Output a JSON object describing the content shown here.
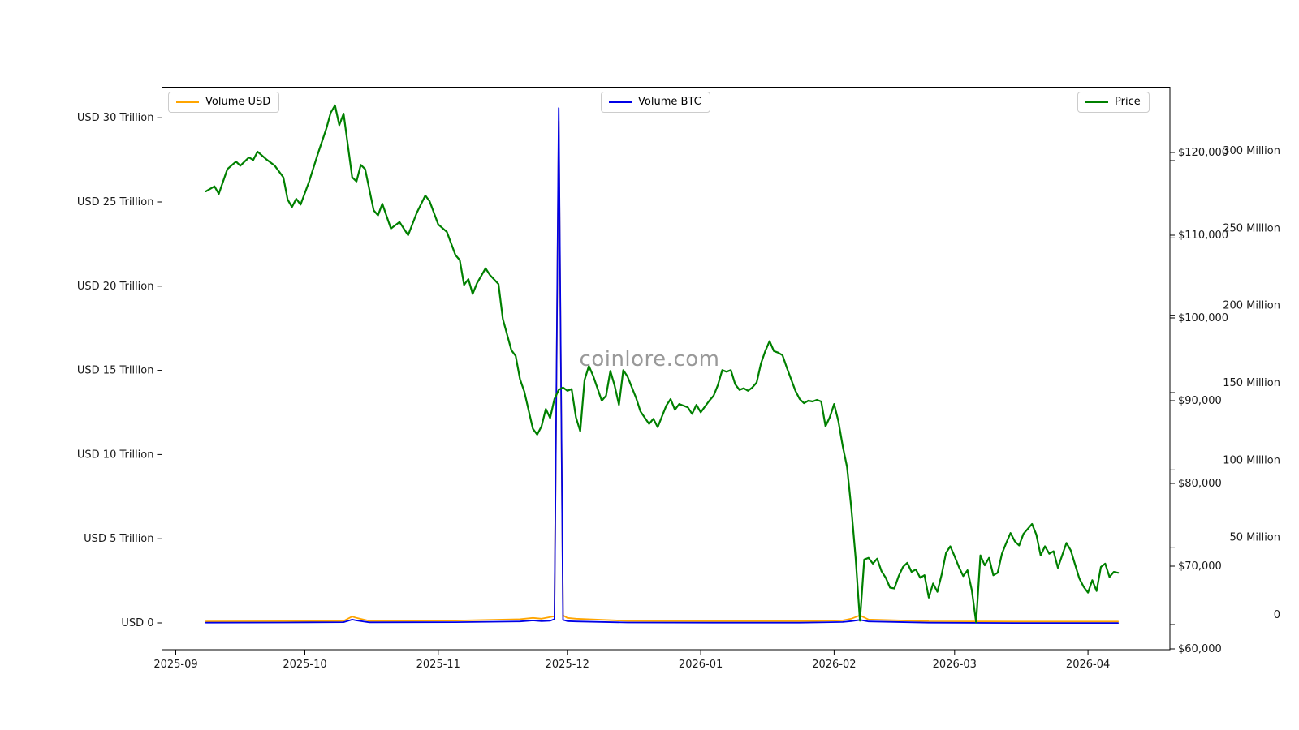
{
  "watermark": "coinlore.com",
  "legends": [
    {
      "id": "volume-usd",
      "label": "Volume USD",
      "color": "#FFA500"
    },
    {
      "id": "volume-btc",
      "label": "Volume BTC",
      "color": "#0000E6"
    },
    {
      "id": "price",
      "label": "Price",
      "color": "#008000"
    }
  ],
  "colors": {
    "volume_usd": "#FFA500",
    "volume_btc": "#0000E6",
    "price": "#008000",
    "spine": "#000000",
    "tick_text": "#1a1a1a",
    "watermark": "#999999"
  },
  "chart_data": {
    "type": "line",
    "title": "",
    "x_axis": {
      "unit": "date",
      "tick_labels": [
        "2025-09",
        "2025-10",
        "2025-11",
        "2025-12",
        "2026-01",
        "2026-02",
        "2026-03",
        "2026-04"
      ],
      "tick_day_offsets": [
        -5,
        25,
        56,
        86,
        117,
        148,
        176,
        207
      ],
      "data_start_date": "2025-09-06",
      "data_end_date": "2026-04-06"
    },
    "left_axis": {
      "name": "Volume USD",
      "unit": "USD Trillion",
      "ticks": [
        {
          "label": "USD 0",
          "v": 0
        },
        {
          "label": "USD 5 Trillion",
          "v": 5
        },
        {
          "label": "USD 10 Trillion",
          "v": 10
        },
        {
          "label": "USD 15 Trillion",
          "v": 15
        },
        {
          "label": "USD 20 Trillion",
          "v": 20
        },
        {
          "label": "USD 25 Trillion",
          "v": 25
        },
        {
          "label": "USD 30 Trillion",
          "v": 30
        }
      ]
    },
    "right_axis_price": {
      "name": "Price",
      "unit": "USD thousand",
      "ticks": [
        {
          "label": "$60,000",
          "v": 60
        },
        {
          "label": "$70,000",
          "v": 70
        },
        {
          "label": "$80,000",
          "v": 80
        },
        {
          "label": "$90,000",
          "v": 90
        },
        {
          "label": "$100,000",
          "v": 100
        },
        {
          "label": "$110,000",
          "v": 110
        },
        {
          "label": "$120,000",
          "v": 120
        }
      ]
    },
    "right_axis_btc": {
      "name": "Volume BTC",
      "unit": "Million BTC",
      "ticks": [
        {
          "label": "0",
          "v": 0
        },
        {
          "label": "50 Million",
          "v": 50
        },
        {
          "label": "100 Million",
          "v": 100
        },
        {
          "label": "150 Million",
          "v": 150
        },
        {
          "label": "200 Million",
          "v": 200
        },
        {
          "label": "250 Million",
          "v": 250
        },
        {
          "label": "300 Million",
          "v": 300
        }
      ]
    },
    "series": [
      {
        "name": "Volume USD",
        "axis": "usd",
        "color": "#FFA500",
        "width": 1.8,
        "points": [
          [
            2,
            0.09
          ],
          [
            20,
            0.1
          ],
          [
            34,
            0.12
          ],
          [
            36,
            0.38
          ],
          [
            37,
            0.3
          ],
          [
            40,
            0.12
          ],
          [
            60,
            0.14
          ],
          [
            75,
            0.22
          ],
          [
            78,
            0.3
          ],
          [
            80,
            0.25
          ],
          [
            83,
            0.4
          ],
          [
            84,
            29.8
          ],
          [
            85,
            0.45
          ],
          [
            86,
            0.3
          ],
          [
            88,
            0.25
          ],
          [
            100,
            0.12
          ],
          [
            120,
            0.1
          ],
          [
            140,
            0.1
          ],
          [
            150,
            0.15
          ],
          [
            152,
            0.25
          ],
          [
            154,
            0.45
          ],
          [
            156,
            0.2
          ],
          [
            170,
            0.1
          ],
          [
            190,
            0.08
          ],
          [
            214,
            0.08
          ]
        ]
      },
      {
        "name": "Volume BTC",
        "axis": "btc",
        "color": "#0000E6",
        "width": 1.8,
        "points": [
          [
            2,
            1.2
          ],
          [
            20,
            1.3
          ],
          [
            34,
            1.5
          ],
          [
            36,
            3.2
          ],
          [
            37,
            2.6
          ],
          [
            40,
            1.4
          ],
          [
            60,
            1.5
          ],
          [
            75,
            2.0
          ],
          [
            78,
            2.6
          ],
          [
            80,
            2.2
          ],
          [
            82,
            2.4
          ],
          [
            83,
            3.5
          ],
          [
            84,
            334
          ],
          [
            85,
            3.0
          ],
          [
            86,
            2.2
          ],
          [
            88,
            2.0
          ],
          [
            100,
            1.3
          ],
          [
            120,
            1.2
          ],
          [
            140,
            1.2
          ],
          [
            150,
            1.6
          ],
          [
            152,
            2.2
          ],
          [
            154,
            3.0
          ],
          [
            156,
            2.0
          ],
          [
            170,
            1.2
          ],
          [
            190,
            1.0
          ],
          [
            214,
            1.0
          ]
        ]
      },
      {
        "name": "Price",
        "axis": "price",
        "color": "#008000",
        "width": 2.2,
        "points": [
          [
            2,
            115.3
          ],
          [
            4,
            115.9
          ],
          [
            5,
            115.0
          ],
          [
            7,
            118.0
          ],
          [
            9,
            118.9
          ],
          [
            10,
            118.4
          ],
          [
            12,
            119.4
          ],
          [
            13,
            119.1
          ],
          [
            14,
            120.1
          ],
          [
            16,
            119.2
          ],
          [
            18,
            118.4
          ],
          [
            20,
            117.0
          ],
          [
            21,
            114.3
          ],
          [
            22,
            113.4
          ],
          [
            23,
            114.4
          ],
          [
            24,
            113.7
          ],
          [
            26,
            116.5
          ],
          [
            28,
            119.8
          ],
          [
            30,
            122.9
          ],
          [
            31,
            124.8
          ],
          [
            32,
            125.7
          ],
          [
            33,
            123.3
          ],
          [
            34,
            124.7
          ],
          [
            36,
            117.0
          ],
          [
            37,
            116.5
          ],
          [
            38,
            118.5
          ],
          [
            39,
            118.0
          ],
          [
            41,
            113.0
          ],
          [
            42,
            112.4
          ],
          [
            43,
            113.8
          ],
          [
            45,
            110.8
          ],
          [
            47,
            111.6
          ],
          [
            49,
            110.0
          ],
          [
            51,
            112.7
          ],
          [
            53,
            114.8
          ],
          [
            54,
            114.1
          ],
          [
            56,
            111.3
          ],
          [
            58,
            110.4
          ],
          [
            60,
            107.6
          ],
          [
            61,
            107.0
          ],
          [
            62,
            104.0
          ],
          [
            63,
            104.7
          ],
          [
            64,
            102.9
          ],
          [
            65,
            104.2
          ],
          [
            67,
            106.0
          ],
          [
            68,
            105.2
          ],
          [
            70,
            104.1
          ],
          [
            71,
            99.9
          ],
          [
            73,
            96.1
          ],
          [
            74,
            95.4
          ],
          [
            75,
            92.6
          ],
          [
            76,
            91.1
          ],
          [
            78,
            86.6
          ],
          [
            79,
            85.9
          ],
          [
            80,
            86.9
          ],
          [
            81,
            89.0
          ],
          [
            82,
            87.9
          ],
          [
            83,
            90.2
          ],
          [
            84,
            91.3
          ],
          [
            85,
            91.6
          ],
          [
            86,
            91.2
          ],
          [
            87,
            91.4
          ],
          [
            88,
            88.0
          ],
          [
            89,
            86.3
          ],
          [
            90,
            92.5
          ],
          [
            91,
            94.2
          ],
          [
            92,
            93.0
          ],
          [
            94,
            90.0
          ],
          [
            95,
            90.6
          ],
          [
            96,
            93.6
          ],
          [
            97,
            91.8
          ],
          [
            98,
            89.5
          ],
          [
            99,
            93.7
          ],
          [
            100,
            92.9
          ],
          [
            102,
            90.3
          ],
          [
            103,
            88.7
          ],
          [
            105,
            87.2
          ],
          [
            106,
            87.8
          ],
          [
            107,
            86.8
          ],
          [
            109,
            89.4
          ],
          [
            110,
            90.2
          ],
          [
            111,
            88.9
          ],
          [
            112,
            89.6
          ],
          [
            114,
            89.2
          ],
          [
            115,
            88.4
          ],
          [
            116,
            89.5
          ],
          [
            117,
            88.6
          ],
          [
            118,
            89.3
          ],
          [
            119,
            90.0
          ],
          [
            120,
            90.6
          ],
          [
            121,
            91.9
          ],
          [
            122,
            93.7
          ],
          [
            123,
            93.5
          ],
          [
            124,
            93.7
          ],
          [
            125,
            92.0
          ],
          [
            126,
            91.3
          ],
          [
            127,
            91.5
          ],
          [
            128,
            91.2
          ],
          [
            129,
            91.6
          ],
          [
            130,
            92.2
          ],
          [
            131,
            94.5
          ],
          [
            132,
            96.0
          ],
          [
            133,
            97.2
          ],
          [
            134,
            96.0
          ],
          [
            135,
            95.8
          ],
          [
            136,
            95.5
          ],
          [
            137,
            94.0
          ],
          [
            138,
            92.6
          ],
          [
            139,
            91.2
          ],
          [
            140,
            90.2
          ],
          [
            141,
            89.7
          ],
          [
            142,
            90.0
          ],
          [
            143,
            89.9
          ],
          [
            144,
            90.1
          ],
          [
            145,
            89.9
          ],
          [
            146,
            86.9
          ],
          [
            147,
            88.0
          ],
          [
            148,
            89.6
          ],
          [
            149,
            87.5
          ],
          [
            150,
            84.5
          ],
          [
            151,
            82.0
          ],
          [
            152,
            77.0
          ],
          [
            153,
            71.0
          ],
          [
            154,
            63.4
          ],
          [
            155,
            70.8
          ],
          [
            156,
            71.0
          ],
          [
            157,
            70.3
          ],
          [
            158,
            70.9
          ],
          [
            159,
            69.4
          ],
          [
            160,
            68.6
          ],
          [
            161,
            67.4
          ],
          [
            162,
            67.3
          ],
          [
            163,
            68.8
          ],
          [
            164,
            69.9
          ],
          [
            165,
            70.4
          ],
          [
            166,
            69.3
          ],
          [
            167,
            69.6
          ],
          [
            168,
            68.6
          ],
          [
            169,
            68.9
          ],
          [
            170,
            66.2
          ],
          [
            171,
            67.9
          ],
          [
            172,
            66.9
          ],
          [
            173,
            69.0
          ],
          [
            174,
            71.6
          ],
          [
            175,
            72.4
          ],
          [
            176,
            71.2
          ],
          [
            177,
            69.9
          ],
          [
            178,
            68.8
          ],
          [
            179,
            69.5
          ],
          [
            180,
            67.1
          ],
          [
            181,
            63.2
          ],
          [
            182,
            71.3
          ],
          [
            183,
            70.1
          ],
          [
            184,
            71.0
          ],
          [
            185,
            68.9
          ],
          [
            186,
            69.2
          ],
          [
            187,
            71.5
          ],
          [
            188,
            72.8
          ],
          [
            189,
            74.0
          ],
          [
            190,
            73.0
          ],
          [
            191,
            72.5
          ],
          [
            192,
            73.9
          ],
          [
            194,
            75.1
          ],
          [
            195,
            73.8
          ],
          [
            196,
            71.3
          ],
          [
            197,
            72.4
          ],
          [
            198,
            71.5
          ],
          [
            199,
            71.8
          ],
          [
            200,
            69.8
          ],
          [
            201,
            71.3
          ],
          [
            202,
            72.8
          ],
          [
            203,
            71.9
          ],
          [
            204,
            70.2
          ],
          [
            205,
            68.5
          ],
          [
            206,
            67.5
          ],
          [
            207,
            66.8
          ],
          [
            208,
            68.3
          ],
          [
            209,
            67.0
          ],
          [
            210,
            69.9
          ],
          [
            211,
            70.3
          ],
          [
            212,
            68.7
          ],
          [
            213,
            69.3
          ],
          [
            214,
            69.2
          ]
        ]
      }
    ],
    "annotations": {
      "btc_volume_spike": {
        "approx_date": "2025-11-27",
        "value_million_btc": 334
      },
      "price_all_time_high": {
        "approx_date": "2025-10-06",
        "value_usd": 125700
      },
      "price_low_after_crash": {
        "approx_date": "2026-02-08",
        "value_usd": 63400
      }
    },
    "legend_position": "top (three boxes: left, center, right)",
    "grid": false
  }
}
